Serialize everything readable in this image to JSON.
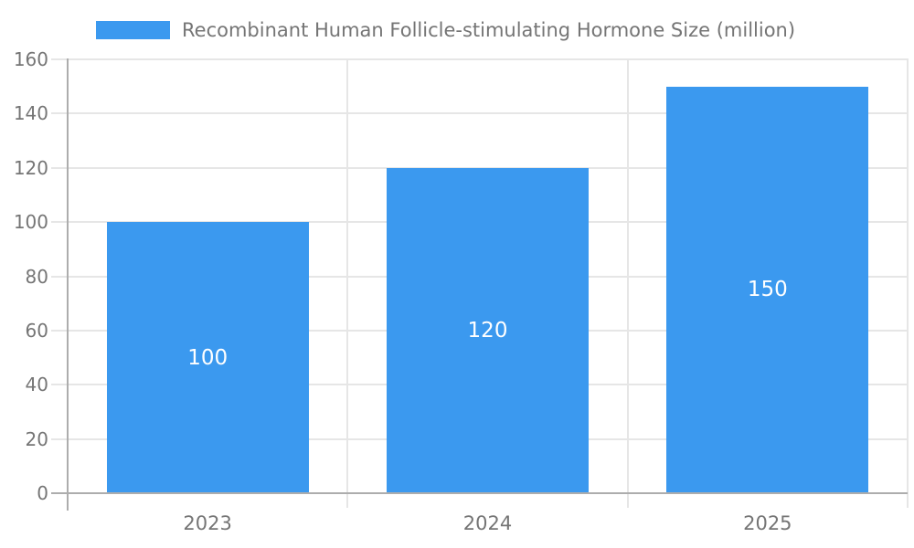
{
  "chart_data": {
    "type": "bar",
    "title": "",
    "legend_position": "top-left",
    "categories": [
      "2023",
      "2024",
      "2025"
    ],
    "series": [
      {
        "name": "Recombinant Human Follicle-stimulating Hormone Size (million)",
        "values": [
          100,
          120,
          150
        ]
      }
    ],
    "data_labels": [
      "100",
      "120",
      "150"
    ],
    "xlabel": "",
    "ylabel": "",
    "ylim": [
      0,
      160
    ],
    "y_ticks": [
      0,
      20,
      40,
      60,
      80,
      100,
      120,
      140,
      160
    ],
    "grid": true,
    "colors": {
      "bar": "#3B99EF",
      "bar_label": "#FFFFFF",
      "axis_label": "#757575",
      "legend_text": "#757575",
      "axis_line": "#ADADAD",
      "gridline": "#E6E6E6",
      "background": "#FFFFFF"
    }
  }
}
